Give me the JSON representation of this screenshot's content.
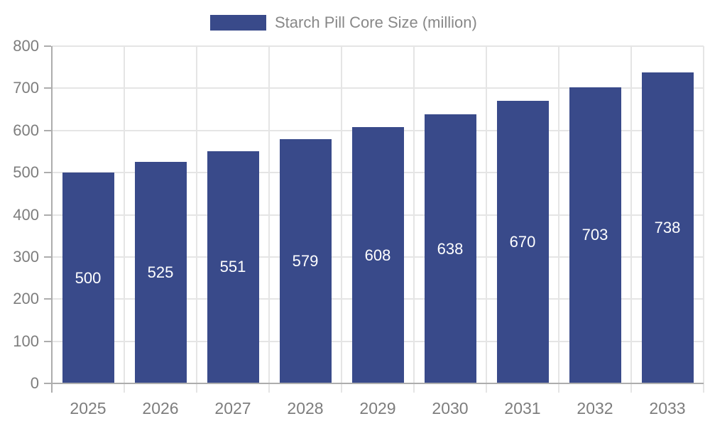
{
  "chart_data": {
    "type": "bar",
    "legend_label": "Starch Pill Core Size (million)",
    "categories": [
      "2025",
      "2026",
      "2027",
      "2028",
      "2029",
      "2030",
      "2031",
      "2032",
      "2033"
    ],
    "series": [
      {
        "name": "Starch Pill Core Size (million)",
        "values": [
          500,
          525,
          551,
          579,
          608,
          638,
          670,
          703,
          738
        ]
      }
    ],
    "xlabel": "",
    "ylabel": "",
    "ylim": [
      0,
      800
    ],
    "ytick_step": 100,
    "ytick_labels": [
      "0",
      "100",
      "200",
      "300",
      "400",
      "500",
      "600",
      "700",
      "800"
    ],
    "grid": true,
    "legend_position": "top-center",
    "value_labels": "inside-center",
    "colors": {
      "bar": "#394A8A",
      "bar_value_label": "#FFFFFF",
      "grid_line": "#E5E5E5",
      "axis_line": "#ADADAD",
      "tick_label": "#7D7D7D",
      "legend_text": "#888888",
      "background": "#FFFFFF"
    }
  }
}
